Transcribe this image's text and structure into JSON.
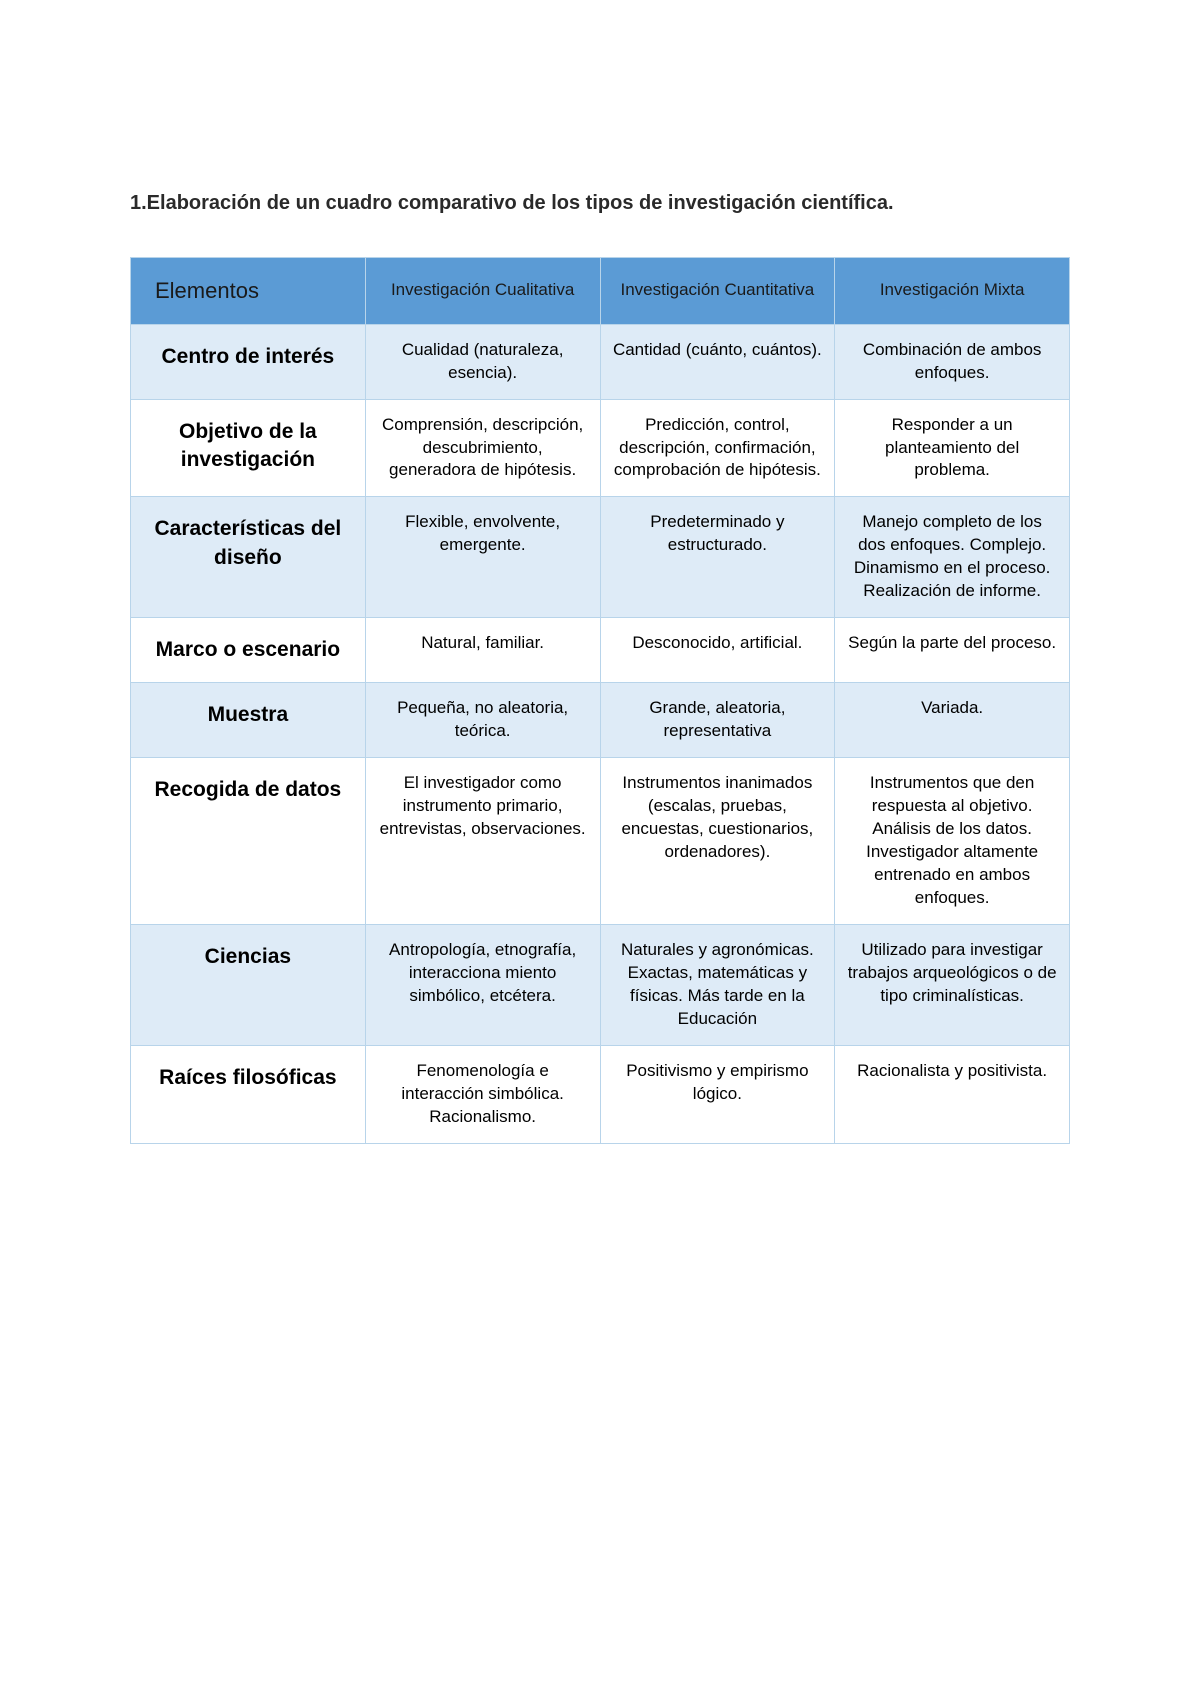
{
  "title": "1.Elaboración de un cuadro comparativo de los tipos de investigación científica.",
  "table": {
    "type": "table",
    "header_row_bg": "#5b9bd5",
    "alt_row_bg": "#deebf7",
    "plain_row_bg": "#ffffff",
    "border_color": "#b8d4ea",
    "columns": [
      "Elementos",
      "Investigación Cualitativa",
      "Investigación Cuantitativa",
      "Investigación Mixta"
    ],
    "rows": [
      {
        "alt": true,
        "cells": [
          "Centro de interés",
          "Cualidad (naturaleza, esencia).",
          "Cantidad (cuánto, cuántos).",
          "Combinación de ambos enfoques."
        ]
      },
      {
        "alt": false,
        "cells": [
          "Objetivo de la investigación",
          "Comprensión, descripción, descubrimiento, generadora de hipótesis.",
          "Predicción, control, descripción, confirmación, comprobación de hipótesis.",
          "Responder a un planteamiento del problema."
        ]
      },
      {
        "alt": true,
        "cells": [
          "Características del diseño",
          "Flexible, envolvente, emergente.",
          "Predeterminado y estructurado.",
          "Manejo completo de los dos enfoques. Complejo. Dinamismo en el proceso. Realización de informe."
        ]
      },
      {
        "alt": false,
        "cells": [
          "Marco o escenario",
          "Natural, familiar.",
          "Desconocido, artificial.",
          "Según la parte del proceso."
        ]
      },
      {
        "alt": true,
        "cells": [
          "Muestra",
          "Pequeña, no aleatoria, teórica.",
          "Grande, aleatoria, representativa",
          "Variada."
        ]
      },
      {
        "alt": false,
        "cells": [
          "Recogida de datos",
          "El investigador como instrumento primario, entrevistas, observaciones.",
          "Instrumentos inanimados (escalas, pruebas, encuestas, cuestionarios, ordenadores).",
          "Instrumentos que den respuesta al objetivo. Análisis de los datos. Investigador altamente entrenado en ambos enfoques."
        ]
      },
      {
        "alt": true,
        "cells": [
          "Ciencias",
          "Antropología, etnografía, interacciona miento simbólico, etcétera.",
          "Naturales y agronómicas. Exactas, matemáticas y físicas. Más tarde en la Educación",
          "Utilizado para investigar trabajos arqueológicos o de tipo criminalísticas."
        ]
      },
      {
        "alt": false,
        "cells": [
          "Raíces filosóficas",
          "Fenomenología e interacción simbólica. Racionalismo.",
          "Positivismo y empirismo lógico.",
          "Racionalista y positivista."
        ]
      }
    ]
  }
}
